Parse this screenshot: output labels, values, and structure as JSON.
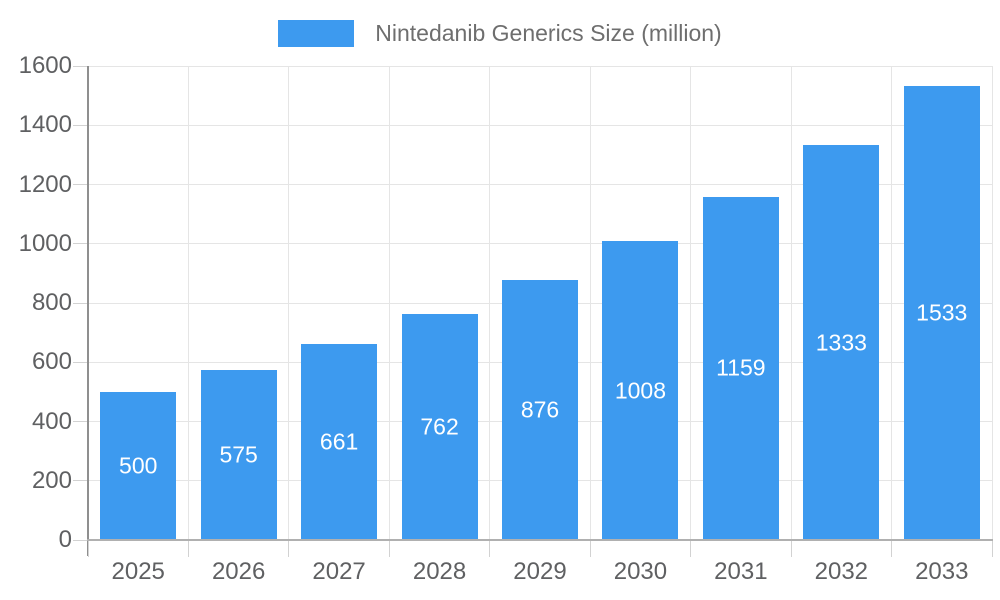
{
  "legend": {
    "label": "Nintedanib Generics Size (million)"
  },
  "chart_data": {
    "type": "bar",
    "title": "Nintedanib Generics Size (million)",
    "categories": [
      "2025",
      "2026",
      "2027",
      "2028",
      "2029",
      "2030",
      "2031",
      "2032",
      "2033"
    ],
    "series": [
      {
        "name": "Nintedanib Generics Size (million)",
        "values": [
          500,
          575,
          661,
          762,
          876,
          1008,
          1159,
          1333,
          1533
        ]
      }
    ],
    "xlabel": "",
    "ylabel": "",
    "ylim": [
      0,
      1600
    ],
    "yticks": [
      0,
      200,
      400,
      600,
      800,
      1000,
      1200,
      1400,
      1600
    ],
    "grid": "both",
    "legend_position": "top-center",
    "bar_value_labels_shown": true
  },
  "colors": {
    "bar": "#3d9aef",
    "grid": "#e5e5e5",
    "tick": "#d2d2d2",
    "y_axis": "#8f8f8f",
    "x_axis": "#b0b0b0",
    "axis_label": "#5f6062",
    "legend_text": "#6e6e6e",
    "bar_label": "#ffffff",
    "background": "#ffffff"
  }
}
